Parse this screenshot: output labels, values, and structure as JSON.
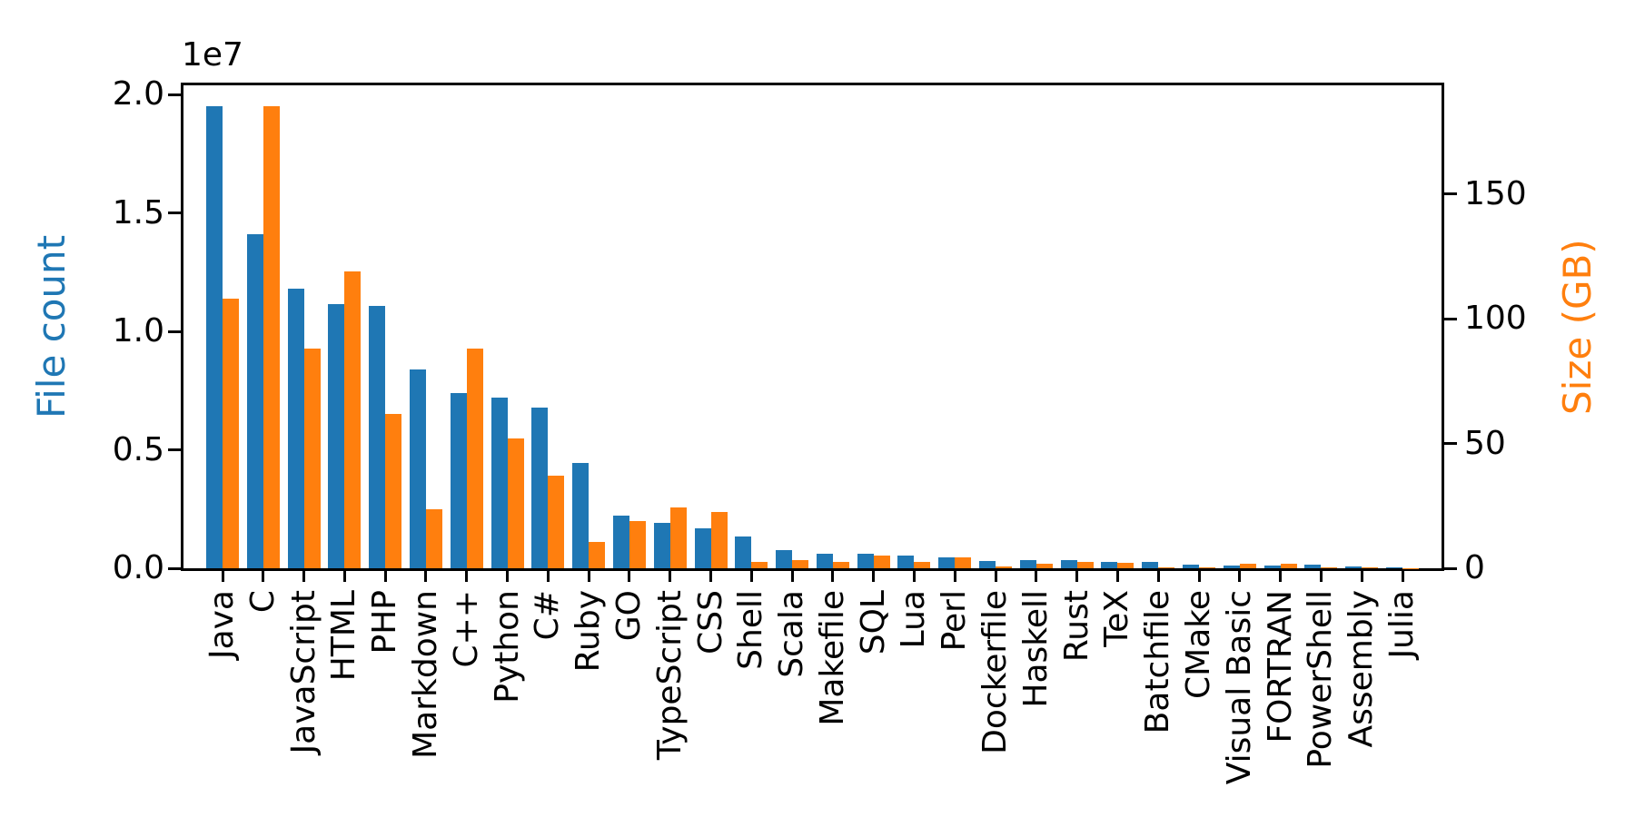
{
  "chart_data": {
    "type": "bar",
    "title": "",
    "categories": [
      "Java",
      "C",
      "JavaScript",
      "HTML",
      "PHP",
      "Markdown",
      "C++",
      "Python",
      "C#",
      "Ruby",
      "GO",
      "TypeScript",
      "CSS",
      "Shell",
      "Scala",
      "Makefile",
      "SQL",
      "Lua",
      "Perl",
      "Dockerfile",
      "Haskell",
      "Rust",
      "TeX",
      "Batchfile",
      "CMake",
      "Visual Basic",
      "FORTRAN",
      "PowerShell",
      "Assembly",
      "Julia"
    ],
    "series": [
      {
        "name": "File count",
        "axis": "left",
        "color": "#1f77b4",
        "values": [
          19500000,
          14100000,
          11800000,
          11150000,
          11100000,
          8400000,
          7400000,
          7200000,
          6800000,
          4450000,
          2220000,
          1900000,
          1670000,
          1340000,
          770000,
          610000,
          630000,
          545000,
          470000,
          320000,
          360000,
          360000,
          260000,
          270000,
          140000,
          103000,
          126000,
          150000,
          70000,
          30000
        ]
      },
      {
        "name": "Size (GB)",
        "axis": "right",
        "color": "#ff7f0e",
        "values": [
          108,
          185,
          88,
          119,
          62,
          23.5,
          88,
          52,
          37,
          10.5,
          19,
          24.5,
          22.5,
          2.5,
          3.3,
          2.6,
          5.0,
          2.4,
          4.5,
          0.7,
          1.8,
          2.4,
          2.2,
          0.3,
          0.25,
          1.9,
          1.9,
          0.3,
          0.4,
          0.15
        ]
      }
    ],
    "left_axis": {
      "label": "File count",
      "label_color": "#1f77b4",
      "tick_labels": [
        "0.0",
        "0.5",
        "1.0",
        "1.5",
        "2.0"
      ],
      "tick_values": [
        0,
        5000000,
        10000000,
        15000000,
        20000000
      ],
      "offset_text": "1e7",
      "range": [
        0,
        20400000
      ]
    },
    "right_axis": {
      "label": "Size (GB)",
      "label_color": "#ff7f0e",
      "tick_labels": [
        "0",
        "50",
        "100",
        "150"
      ],
      "tick_values": [
        0,
        50,
        100,
        150
      ],
      "range": [
        0,
        193.5
      ]
    },
    "x_axis": {
      "tick_rotation": 90
    },
    "grid": false,
    "legend": false,
    "background": "#ffffff",
    "frame_color": "#000000"
  }
}
